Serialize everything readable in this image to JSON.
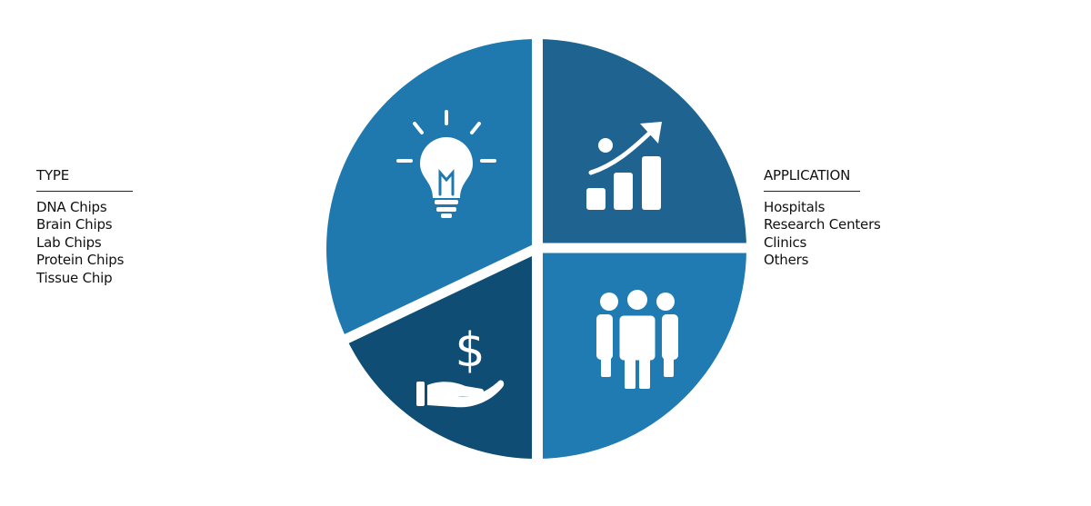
{
  "type_legend": {
    "title": "TYPE",
    "items": [
      "DNA Chips",
      "Brain Chips",
      "Lab Chips",
      "Protein Chips",
      "Tissue Chip"
    ]
  },
  "application_legend": {
    "title": "APPLICATION",
    "items": [
      "Hospitals",
      "Research Centers",
      "Clinics",
      "Others"
    ]
  },
  "segments": [
    {
      "name": "growth-chart",
      "icon": "growth-chart-icon",
      "color": "#1f6491"
    },
    {
      "name": "people",
      "icon": "people-group-icon",
      "color": "#1f7bb1"
    },
    {
      "name": "money",
      "icon": "money-hand-icon",
      "color": "#0f4d74"
    },
    {
      "name": "idea",
      "icon": "lightbulb-icon",
      "color": "#1f79ae"
    }
  ]
}
